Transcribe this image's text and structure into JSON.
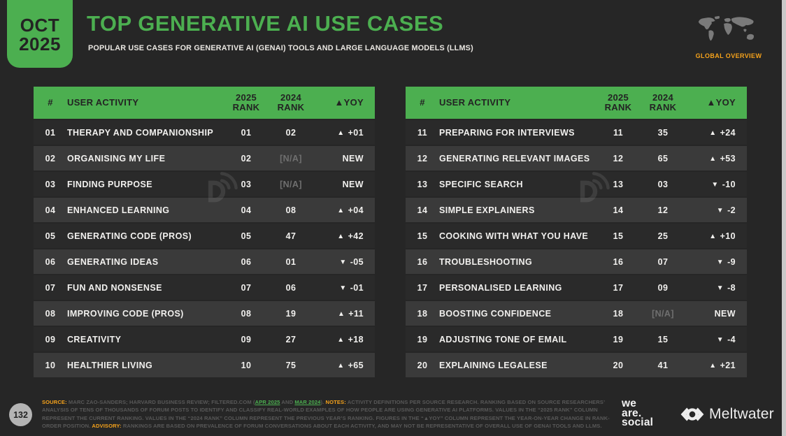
{
  "header": {
    "date_month": "OCT",
    "date_year": "2025",
    "title": "TOP GENERATIVE AI USE CASES",
    "subtitle": "POPULAR USE CASES FOR GENERATIVE AI (GENAI) TOOLS AND LARGE LANGUAGE MODELS (LLMS)",
    "region_label": "GLOBAL OVERVIEW"
  },
  "colors": {
    "accent_green": "#4caf50",
    "accent_orange": "#f5a21b",
    "background": "#262626",
    "row_dark": "#2a2a2a",
    "row_light": "#3a3a3a"
  },
  "icons": {
    "trend_up": "▲",
    "trend_down": "▼",
    "world_map": "world-map-icon",
    "watermark": "signal-d-icon",
    "meltwater_eye": "meltwater-eye-icon"
  },
  "chart_data": {
    "type": "table",
    "title": "TOP GENERATIVE AI USE CASES",
    "columns": {
      "num": "#",
      "activity": "USER ACTIVITY",
      "rank_2025": "2025\nRANK",
      "rank_2024": "2024\nRANK",
      "yoy": "▲YOY"
    },
    "tables": [
      {
        "rows": [
          {
            "num": "01",
            "activity": "THERAPY AND COMPANIONSHIP",
            "rank_2025": "01",
            "rank_2024": "02",
            "yoy": "+01"
          },
          {
            "num": "02",
            "activity": "ORGANISING MY LIFE",
            "rank_2025": "02",
            "rank_2024": "[N/A]",
            "yoy": "NEW"
          },
          {
            "num": "03",
            "activity": "FINDING PURPOSE",
            "rank_2025": "03",
            "rank_2024": "[N/A]",
            "yoy": "NEW"
          },
          {
            "num": "04",
            "activity": "ENHANCED LEARNING",
            "rank_2025": "04",
            "rank_2024": "08",
            "yoy": "+04"
          },
          {
            "num": "05",
            "activity": "GENERATING CODE (PROS)",
            "rank_2025": "05",
            "rank_2024": "47",
            "yoy": "+42"
          },
          {
            "num": "06",
            "activity": "GENERATING IDEAS",
            "rank_2025": "06",
            "rank_2024": "01",
            "yoy": "-05"
          },
          {
            "num": "07",
            "activity": "FUN AND NONSENSE",
            "rank_2025": "07",
            "rank_2024": "06",
            "yoy": "-01"
          },
          {
            "num": "08",
            "activity": "IMPROVING CODE (PROS)",
            "rank_2025": "08",
            "rank_2024": "19",
            "yoy": "+11"
          },
          {
            "num": "09",
            "activity": "CREATIVITY",
            "rank_2025": "09",
            "rank_2024": "27",
            "yoy": "+18"
          },
          {
            "num": "10",
            "activity": "HEALTHIER LIVING",
            "rank_2025": "10",
            "rank_2024": "75",
            "yoy": "+65"
          }
        ]
      },
      {
        "rows": [
          {
            "num": "11",
            "activity": "PREPARING FOR INTERVIEWS",
            "rank_2025": "11",
            "rank_2024": "35",
            "yoy": "+24"
          },
          {
            "num": "12",
            "activity": "GENERATING RELEVANT IMAGES",
            "rank_2025": "12",
            "rank_2024": "65",
            "yoy": "+53"
          },
          {
            "num": "13",
            "activity": "SPECIFIC SEARCH",
            "rank_2025": "13",
            "rank_2024": "03",
            "yoy": "-10"
          },
          {
            "num": "14",
            "activity": "SIMPLE EXPLAINERS",
            "rank_2025": "14",
            "rank_2024": "12",
            "yoy": "-2"
          },
          {
            "num": "15",
            "activity": "COOKING WITH WHAT YOU HAVE",
            "rank_2025": "15",
            "rank_2024": "25",
            "yoy": "+10"
          },
          {
            "num": "16",
            "activity": "TROUBLESHOOTING",
            "rank_2025": "16",
            "rank_2024": "07",
            "yoy": "-9"
          },
          {
            "num": "17",
            "activity": "PERSONALISED LEARNING",
            "rank_2025": "17",
            "rank_2024": "09",
            "yoy": "-8"
          },
          {
            "num": "18",
            "activity": "BOOSTING CONFIDENCE",
            "rank_2025": "18",
            "rank_2024": "[N/A]",
            "yoy": "NEW"
          },
          {
            "num": "19",
            "activity": "ADJUSTING TONE OF EMAIL",
            "rank_2025": "19",
            "rank_2024": "15",
            "yoy": "-4"
          },
          {
            "num": "20",
            "activity": "EXPLAINING LEGALESE",
            "rank_2025": "20",
            "rank_2024": "41",
            "yoy": "+21"
          }
        ]
      }
    ]
  },
  "footer": {
    "page_number": "132",
    "lines": [
      [
        {
          "t": "SOURCE:",
          "s": "label"
        },
        {
          "t": " MARC ZAO-SANDERS; HARVARD BUSINESS REVIEW; FILTERED.COM ("
        },
        {
          "t": "APR 2025",
          "s": "link"
        },
        {
          "t": " AND "
        },
        {
          "t": "MAR 2024",
          "s": "link"
        },
        {
          "t": "). "
        },
        {
          "t": "NOTES:",
          "s": "label"
        },
        {
          "t": " ACTIVITY DEFINITIONS PER SOURCE RESEARCH. RANKING BASED ON SOURCE RESEARCHERS’"
        }
      ],
      [
        {
          "t": "ANALYSIS OF TENS OF THOUSANDS OF FORUM POSTS TO IDENTIFY AND CLASSIFY REAL-WORLD EXAMPLES OF HOW PEOPLE ARE USING GENERATIVE AI PLATFORMS. VALUES IN THE “2025 RANK” COLUMN"
        }
      ],
      [
        {
          "t": "REPRESENT THE CURRENT RANKING. VALUES IN THE “2024 RANK” COLUMN REPRESENT THE PREVIOUS YEAR’S RANKING. FIGURES IN THE “▲YOY” COLUMN REPRESENT THE YEAR-ON-YEAR CHANGE IN RANK-"
        }
      ],
      [
        {
          "t": "ORDER POSITION. "
        },
        {
          "t": "ADVISORY:",
          "s": "label"
        },
        {
          "t": " RANKINGS ARE BASED ON PREVALENCE OF FORUM CONVERSATIONS ABOUT EACH ACTIVITY, AND MAY NOT BE REPRESENTATIVE OF OVERALL USE OF GENAI TOOLS AND LLMS."
        }
      ]
    ],
    "logos": {
      "we_are_social": [
        "we",
        "are.",
        "social"
      ],
      "meltwater": "Meltwater"
    }
  }
}
